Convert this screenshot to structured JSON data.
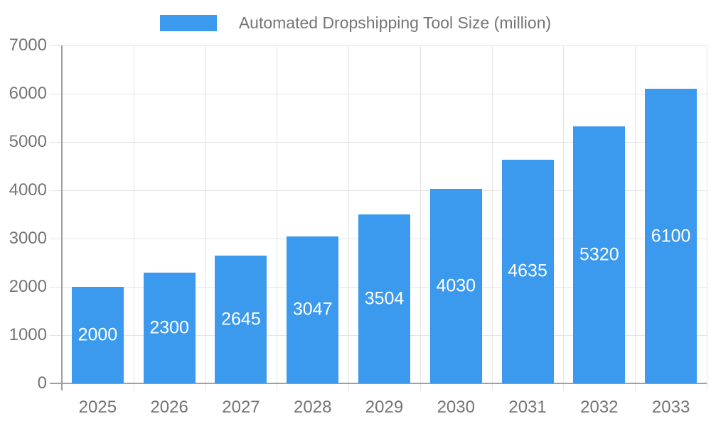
{
  "legend": {
    "label": "Automated Dropshipping Tool Size (million)"
  },
  "colors": {
    "bar": "#3B99EE",
    "bar_label": "#FFFFFF",
    "grid": "#E4E4E4",
    "axis": "#A0A0A0",
    "tick_text": "#757575",
    "background": "#FFFFFF"
  },
  "chart_data": {
    "type": "bar",
    "title": "Automated Dropshipping Tool Size (million)",
    "categories": [
      "2025",
      "2026",
      "2027",
      "2028",
      "2029",
      "2030",
      "2031",
      "2032",
      "2033"
    ],
    "values": [
      2000,
      2300,
      2645,
      3047,
      3504,
      4030,
      4635,
      5320,
      6100
    ],
    "series_name": "Automated Dropshipping Tool Size (million)",
    "xlabel": "",
    "ylabel": "",
    "ylim": [
      0,
      7000
    ],
    "ytick_step": 1000,
    "yticks": [
      0,
      1000,
      2000,
      3000,
      4000,
      5000,
      6000,
      7000
    ],
    "grid": true,
    "legend_position": "top",
    "bar_labels_visible": true
  }
}
